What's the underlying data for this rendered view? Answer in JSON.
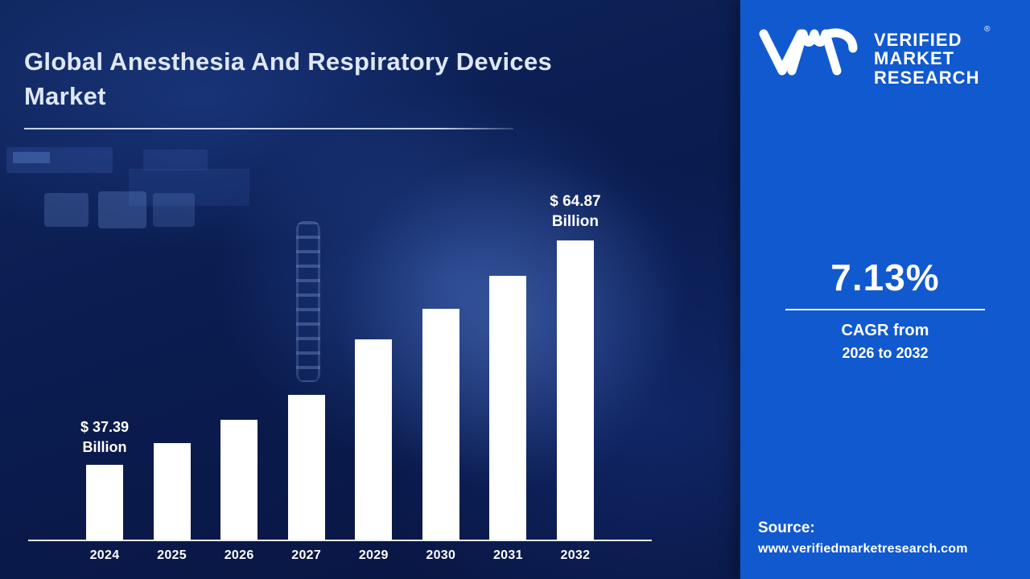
{
  "title": "Global Anesthesia And Respiratory Devices Market",
  "chart_data": {
    "type": "bar",
    "title": "Global Anesthesia And Respiratory Devices Market",
    "unit": "USD Billion",
    "categories": [
      "2024",
      "2025",
      "2026",
      "2027",
      "2029",
      "2030",
      "2031",
      "2032"
    ],
    "values": [
      37.39,
      40.06,
      42.91,
      45.97,
      52.77,
      56.53,
      60.56,
      64.87
    ],
    "bar_color": "#ffffff",
    "xlabel": "",
    "ylabel": "",
    "legend": "none",
    "grid": false,
    "first_label": {
      "line1": "$ 37.39",
      "line2": "Billion"
    },
    "last_label": {
      "line1": "$ 64.87",
      "line2": "Billion"
    }
  },
  "sidebar": {
    "background": "#1159ce",
    "logo": {
      "brand_line1": "VERIFIED",
      "brand_line2": "MARKET",
      "brand_line3": "RESEARCH",
      "registered": "®",
      "monogram": "vmr-monogram"
    },
    "cagr_value": "7.13%",
    "cagr_label_line1": "CAGR from",
    "cagr_label_line2": "2026 to 2032",
    "source_label": "Source:",
    "source_url": "www.verifiedmarketresearch.com"
  },
  "colors": {
    "left_background": "#0a1c50",
    "right_background": "#1159ce",
    "bar": "#ffffff",
    "title_text": "#dfe7f8"
  }
}
